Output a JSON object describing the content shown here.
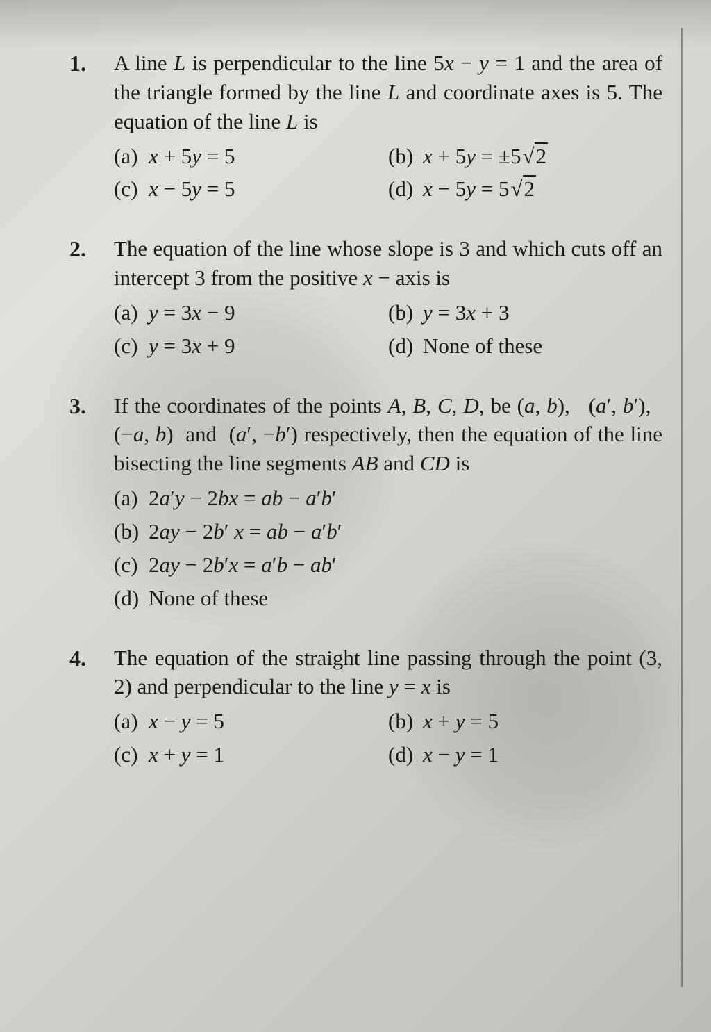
{
  "questions": [
    {
      "number": "1.",
      "text_html": "A line <span class='math-i'>L</span> is perpendicular to the line 5<span class='math-i'>x</span> − <span class='math-i'>y</span> = 1 and the area of the triangle formed by the line <span class='math-i'>L</span> and coordinate axes is 5. The equation of the line <span class='math-i'>L</span> is",
      "layout": "two-col",
      "options": [
        {
          "label": "(a)",
          "html": "<span class='math-i'>x</span> + 5<span class='math-i'>y</span> = 5"
        },
        {
          "label": "(b)",
          "html": "<span class='math-i'>x</span> + 5<span class='math-i'>y</span> = ±5<span class='sqrt'><span>2</span></span>"
        },
        {
          "label": "(c)",
          "html": "<span class='math-i'>x</span> − 5<span class='math-i'>y</span> = 5"
        },
        {
          "label": "(d)",
          "html": "<span class='math-i'>x</span> − 5<span class='math-i'>y</span> = 5<span class='sqrt'><span>2</span></span>"
        }
      ]
    },
    {
      "number": "2.",
      "text_html": "The equation of the line whose slope is 3 and which cuts off an intercept 3 from the positive <span class='math-i'>x</span> − axis is",
      "layout": "two-col",
      "options": [
        {
          "label": "(a)",
          "html": "<span class='math-i'>y</span> = 3<span class='math-i'>x</span> − 9"
        },
        {
          "label": "(b)",
          "html": "<span class='math-i'>y</span> = 3<span class='math-i'>x</span> + 3"
        },
        {
          "label": "(c)",
          "html": "<span class='math-i'>y</span> = 3<span class='math-i'>x</span> + 9"
        },
        {
          "label": "(d)",
          "html": "None of these"
        }
      ]
    },
    {
      "number": "3.",
      "text_html": "If the coordinates of the points <span class='math-i'>A</span>, <span class='math-i'>B</span>, <span class='math-i'>C</span>, <span class='math-i'>D</span>, be (<span class='math-i'>a</span>, <span class='math-i'>b</span>), &nbsp; (<span class='math-i'>a</span>′, <span class='math-i'>b</span>′), &nbsp; (−<span class='math-i'>a</span>, <span class='math-i'>b</span>) &nbsp;and&nbsp; (<span class='math-i'>a</span>′, −<span class='math-i'>b</span>′) respectively, then the equation of the line bisecting the line segments <span class='math-i'>AB</span> and <span class='math-i'>CD</span> is",
      "layout": "one-col",
      "options": [
        {
          "label": "(a)",
          "html": "2<span class='math-i'>a</span>′<span class='math-i'>y</span> − 2<span class='math-i'>bx</span> = <span class='math-i'>ab</span> − <span class='math-i'>a</span>′<span class='math-i'>b</span>′"
        },
        {
          "label": "(b)",
          "html": "2<span class='math-i'>ay</span> − 2<span class='math-i'>b</span>′ <span class='math-i'>x</span> = <span class='math-i'>ab</span> − <span class='math-i'>a</span>′<span class='math-i'>b</span>′"
        },
        {
          "label": "(c)",
          "html": "2<span class='math-i'>ay</span> − 2<span class='math-i'>b</span>′<span class='math-i'>x</span> = <span class='math-i'>a</span>′<span class='math-i'>b</span> − <span class='math-i'>ab</span>′"
        },
        {
          "label": "(d)",
          "html": "None of these"
        }
      ]
    },
    {
      "number": "4.",
      "text_html": "The equation of the straight line passing through the point (3, 2) and perpendicular to the line <span class='math-i'>y</span> = <span class='math-i'>x</span> is",
      "layout": "two-col",
      "options": [
        {
          "label": "(a)",
          "html": "<span class='math-i'>x</span> − <span class='math-i'>y</span> = 5"
        },
        {
          "label": "(b)",
          "html": "<span class='math-i'>x</span> + <span class='math-i'>y</span> = 5"
        },
        {
          "label": "(c)",
          "html": "<span class='math-i'>x</span> + <span class='math-i'>y</span> = 1"
        },
        {
          "label": "(d)",
          "html": "<span class='math-i'>x</span> − <span class='math-i'>y</span> = 1"
        }
      ]
    }
  ]
}
